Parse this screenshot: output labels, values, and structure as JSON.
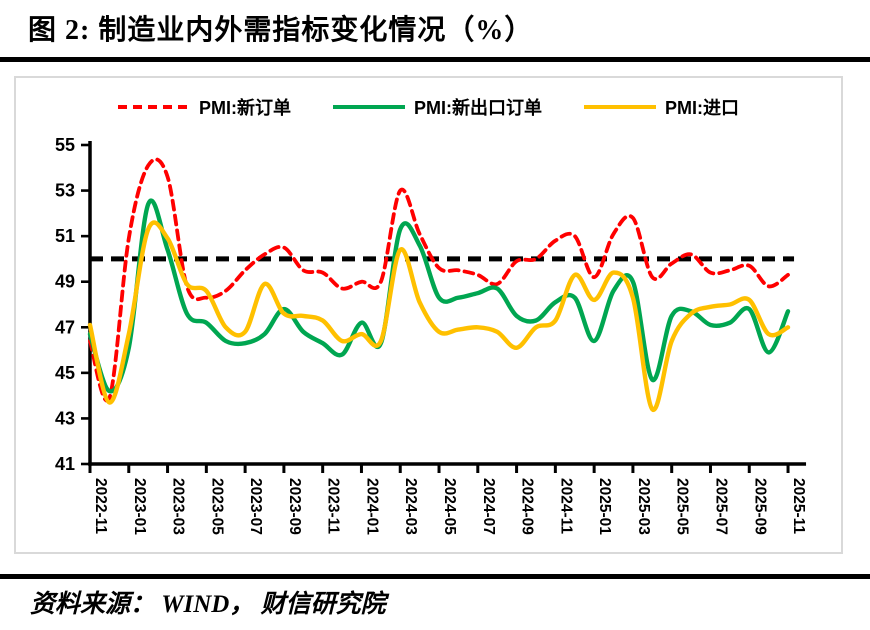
{
  "title": "图 2:  制造业内外需指标变化情况（%）",
  "source_note": "资料来源： WIND， 财信研究院",
  "legend": [
    {
      "label": "PMI:新订单",
      "color": "#FF0000",
      "dashed": true
    },
    {
      "label": "PMI:新出口订单",
      "color": "#00A651",
      "dashed": false
    },
    {
      "label": "PMI:进口",
      "color": "#FFC000",
      "dashed": false
    }
  ],
  "chart_data": {
    "type": "line",
    "x": [
      "2022-11",
      "2022-12",
      "2023-01",
      "2023-02",
      "2023-03",
      "2023-04",
      "2023-05",
      "2023-06",
      "2023-07",
      "2023-08",
      "2023-09",
      "2023-10",
      "2023-11",
      "2023-12",
      "2024-01",
      "2024-02",
      "2024-03",
      "2024-04",
      "2024-05",
      "2024-06",
      "2024-07",
      "2024-08",
      "2024-09",
      "2024-10",
      "2024-11",
      "2024-12",
      "2025-01",
      "2025-02",
      "2025-03",
      "2025-04",
      "2025-05",
      "2025-06",
      "2025-07",
      "2025-08",
      "2025-09",
      "2025-10",
      "2025-11"
    ],
    "xtick_labels": [
      "2022-11",
      "2023-01",
      "2023-03",
      "2023-05",
      "2023-07",
      "2023-09",
      "2023-11",
      "2024-01",
      "2024-03",
      "2024-05",
      "2024-07",
      "2024-09",
      "2024-11",
      "2025-01",
      "2025-03",
      "2025-05",
      "2025-07",
      "2025-09",
      "2025-11"
    ],
    "series": [
      {
        "name": "PMI:新订单",
        "color": "#FF0000",
        "style": "dashed",
        "values": [
          46.4,
          43.9,
          50.9,
          54.1,
          53.6,
          48.8,
          48.3,
          48.6,
          49.5,
          50.2,
          50.5,
          49.5,
          49.4,
          48.7,
          49.0,
          49.0,
          53.0,
          51.1,
          49.6,
          49.5,
          49.3,
          48.9,
          49.9,
          50.0,
          50.8,
          51.0,
          49.2,
          51.1,
          51.8,
          49.2,
          49.8,
          50.2,
          49.4,
          49.5,
          49.7,
          48.8,
          49.3
        ]
      },
      {
        "name": "PMI:新出口订单",
        "color": "#00A651",
        "style": "solid",
        "values": [
          46.7,
          44.2,
          46.1,
          52.4,
          50.4,
          47.6,
          47.2,
          46.4,
          46.3,
          46.7,
          47.8,
          46.8,
          46.3,
          45.8,
          47.2,
          46.3,
          51.3,
          50.6,
          48.3,
          48.3,
          48.5,
          48.7,
          47.5,
          47.3,
          48.1,
          48.3,
          46.4,
          48.6,
          49.0,
          44.7,
          47.5,
          47.7,
          47.1,
          47.2,
          47.8,
          45.9,
          47.7
        ]
      },
      {
        "name": "PMI:进口",
        "color": "#FFC000",
        "style": "solid",
        "values": [
          47.1,
          43.7,
          46.7,
          51.3,
          50.9,
          48.9,
          48.6,
          47.0,
          46.8,
          48.9,
          47.6,
          47.5,
          47.3,
          46.4,
          46.7,
          46.4,
          50.4,
          48.1,
          46.8,
          46.9,
          47.0,
          46.8,
          46.1,
          47.0,
          47.3,
          49.3,
          48.2,
          49.4,
          48.3,
          43.4,
          46.4,
          47.6,
          47.9,
          48.0,
          48.2,
          46.7,
          47.0
        ]
      }
    ],
    "reference_line": {
      "value": 50,
      "color": "#000000",
      "style": "dashed"
    },
    "ylim": [
      41,
      55
    ],
    "yticks": [
      55,
      53,
      51,
      49,
      47,
      45,
      43,
      41
    ],
    "grid": false,
    "legend_position": "top",
    "smooth": true
  }
}
